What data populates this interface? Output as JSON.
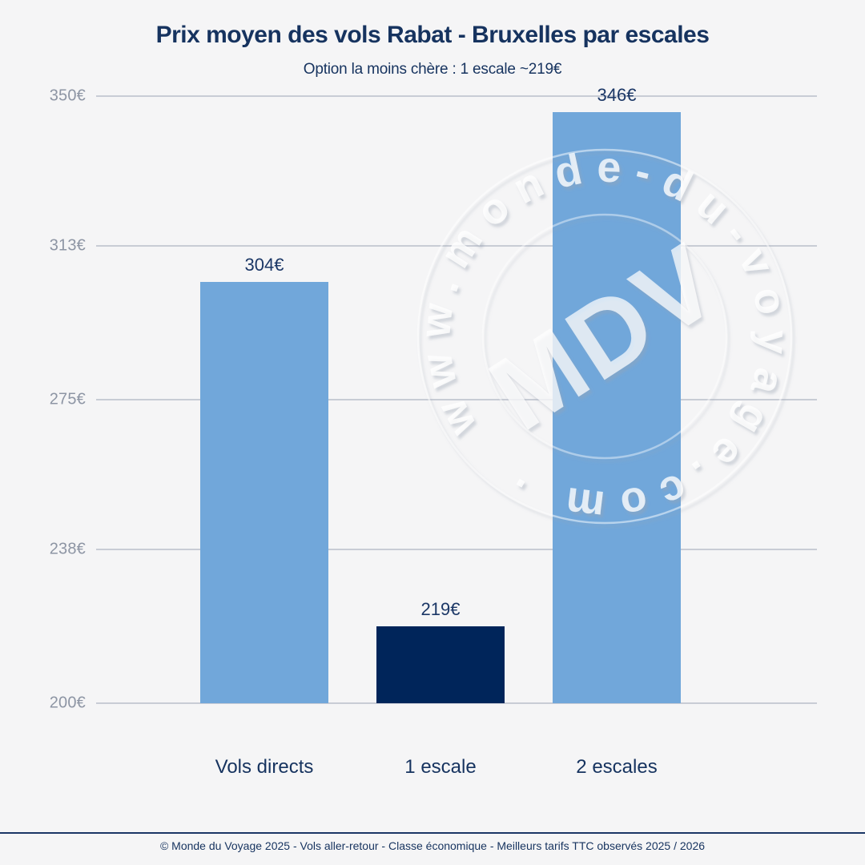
{
  "header": {
    "title": "Prix moyen des vols Rabat - Bruxelles par escales",
    "subtitle": "Option la moins chère : 1 escale ~219€"
  },
  "chart_data": {
    "type": "bar",
    "title": "Prix moyen des vols Rabat - Bruxelles par escales",
    "subtitle": "Option la moins chère : 1 escale ~219€",
    "categories": [
      "Vols directs",
      "1 escale",
      "2 escales"
    ],
    "values": [
      304,
      219,
      346
    ],
    "value_labels": [
      "304€",
      "219€",
      "346€"
    ],
    "bar_colors": [
      "#71a7da",
      "#00255a",
      "#71a7da"
    ],
    "y_ticks": [
      {
        "value": 350,
        "label": "350€"
      },
      {
        "value": 313,
        "label": "313€"
      },
      {
        "value": 275,
        "label": "275€"
      },
      {
        "value": 238,
        "label": "238€"
      },
      {
        "value": 200,
        "label": "200€"
      }
    ],
    "ylim": [
      200,
      350
    ],
    "xlabel": "",
    "ylabel": "",
    "grid": true,
    "legend": false,
    "currency": "EUR"
  },
  "watermark": {
    "ring_text": "www.monde-du-voyage.com ·",
    "center_text": "MDV"
  },
  "footer": {
    "text": "© Monde du Voyage 2025 - Vols aller-retour - Classe économique - Meilleurs tarifs TTC observés 2025 / 2026"
  },
  "colors": {
    "background": "#f5f5f6",
    "title_navy": "#16335f",
    "value_navy": "#1b3766",
    "tick_gray": "#8d95a4",
    "gridline": "#c8ccd5",
    "bar_light_blue": "#71a7da",
    "bar_dark_navy": "#00255a",
    "footer_line": "#1b3766"
  }
}
